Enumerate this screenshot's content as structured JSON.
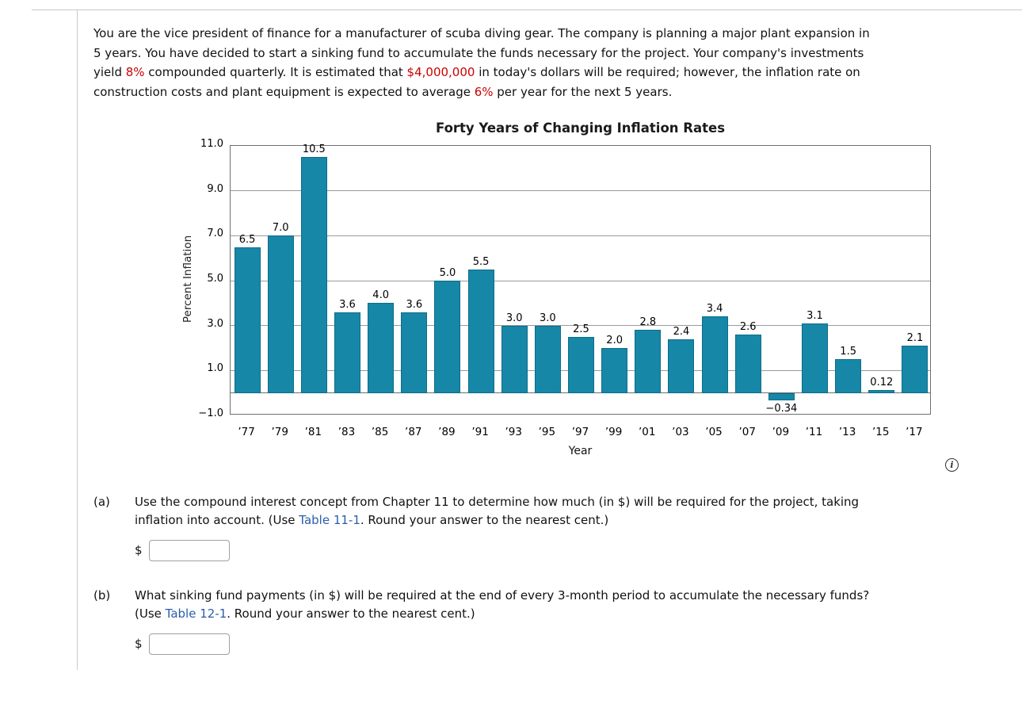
{
  "colors": {
    "value_highlight": "#cc0000",
    "link": "#2b5dad",
    "bar_border": "#0c6d87"
  },
  "intro": {
    "line1": "You are the vice president of finance for a manufacturer of scuba diving gear. The company is planning a major plant expansion in",
    "line2": "5 years. You have decided to start a sinking fund to accumulate the funds necessary for the project. Your company's investments",
    "line3_seg1": "yield ",
    "line3_seg2": "8%",
    "line3_seg3": " compounded quarterly. It is estimated that ",
    "line3_seg4": "$4,000,000",
    "line3_seg5": " in today's dollars will be required; however, the inflation rate on",
    "line4_seg1": "construction costs and plant equipment is expected to average ",
    "line4_seg2": "6%",
    "line4_seg3": " per year for the next 5 years."
  },
  "chart_data": {
    "type": "bar",
    "title": "Forty Years of Changing Inflation Rates",
    "xlabel": "Year",
    "ylabel": "Percent Inflation",
    "categories": [
      "’77",
      "’79",
      "’81",
      "’83",
      "’85",
      "’87",
      "’89",
      "’91",
      "’93",
      "’95",
      "’97",
      "’99",
      "’01",
      "’03",
      "’05",
      "’07",
      "’09",
      "’11",
      "’13",
      "’15",
      "’17"
    ],
    "values": [
      6.5,
      7.0,
      10.5,
      3.6,
      4.0,
      3.6,
      5.0,
      5.5,
      3.0,
      3.0,
      2.5,
      2.0,
      2.8,
      2.4,
      3.4,
      2.6,
      -0.34,
      3.1,
      1.5,
      0.12,
      2.1
    ],
    "labels": [
      "6.5",
      "7.0",
      "10.5",
      "3.6",
      "4.0",
      "3.6",
      "5.0",
      "5.5",
      "3.0",
      "3.0",
      "2.5",
      "2.0",
      "2.8",
      "2.4",
      "3.4",
      "2.6",
      "−0.34",
      "3.1",
      "1.5",
      "0.12",
      "2.1"
    ],
    "yticks": [
      -1.0,
      1.0,
      3.0,
      5.0,
      7.0,
      9.0,
      11.0
    ],
    "ytick_labels": [
      "−1.0",
      "1.0",
      "3.0",
      "5.0",
      "7.0",
      "9.0",
      "11.0"
    ],
    "ylim": [
      -1.0,
      11.0
    ],
    "grid": true,
    "bar_color": "#1787a8"
  },
  "info_icon": {
    "glyph": "i"
  },
  "questions": {
    "a": {
      "label": "(a)",
      "line1": "Use the compound interest concept from Chapter 11 to determine how much (in $) will be required for the project, taking",
      "line2_before": "inflation into account. (Use ",
      "link_text": "Table 11-1",
      "line2_after": ". Round your answer to the nearest cent.)",
      "currency": "$",
      "input_value": ""
    },
    "b": {
      "label": "(b)",
      "line1": "What sinking fund payments (in $) will be required at the end of every 3-month period to accumulate the necessary funds?",
      "line2_before": "(Use ",
      "link_text": "Table 12-1",
      "line2_after": ". Round your answer to the nearest cent.)",
      "currency": "$",
      "input_value": ""
    }
  }
}
